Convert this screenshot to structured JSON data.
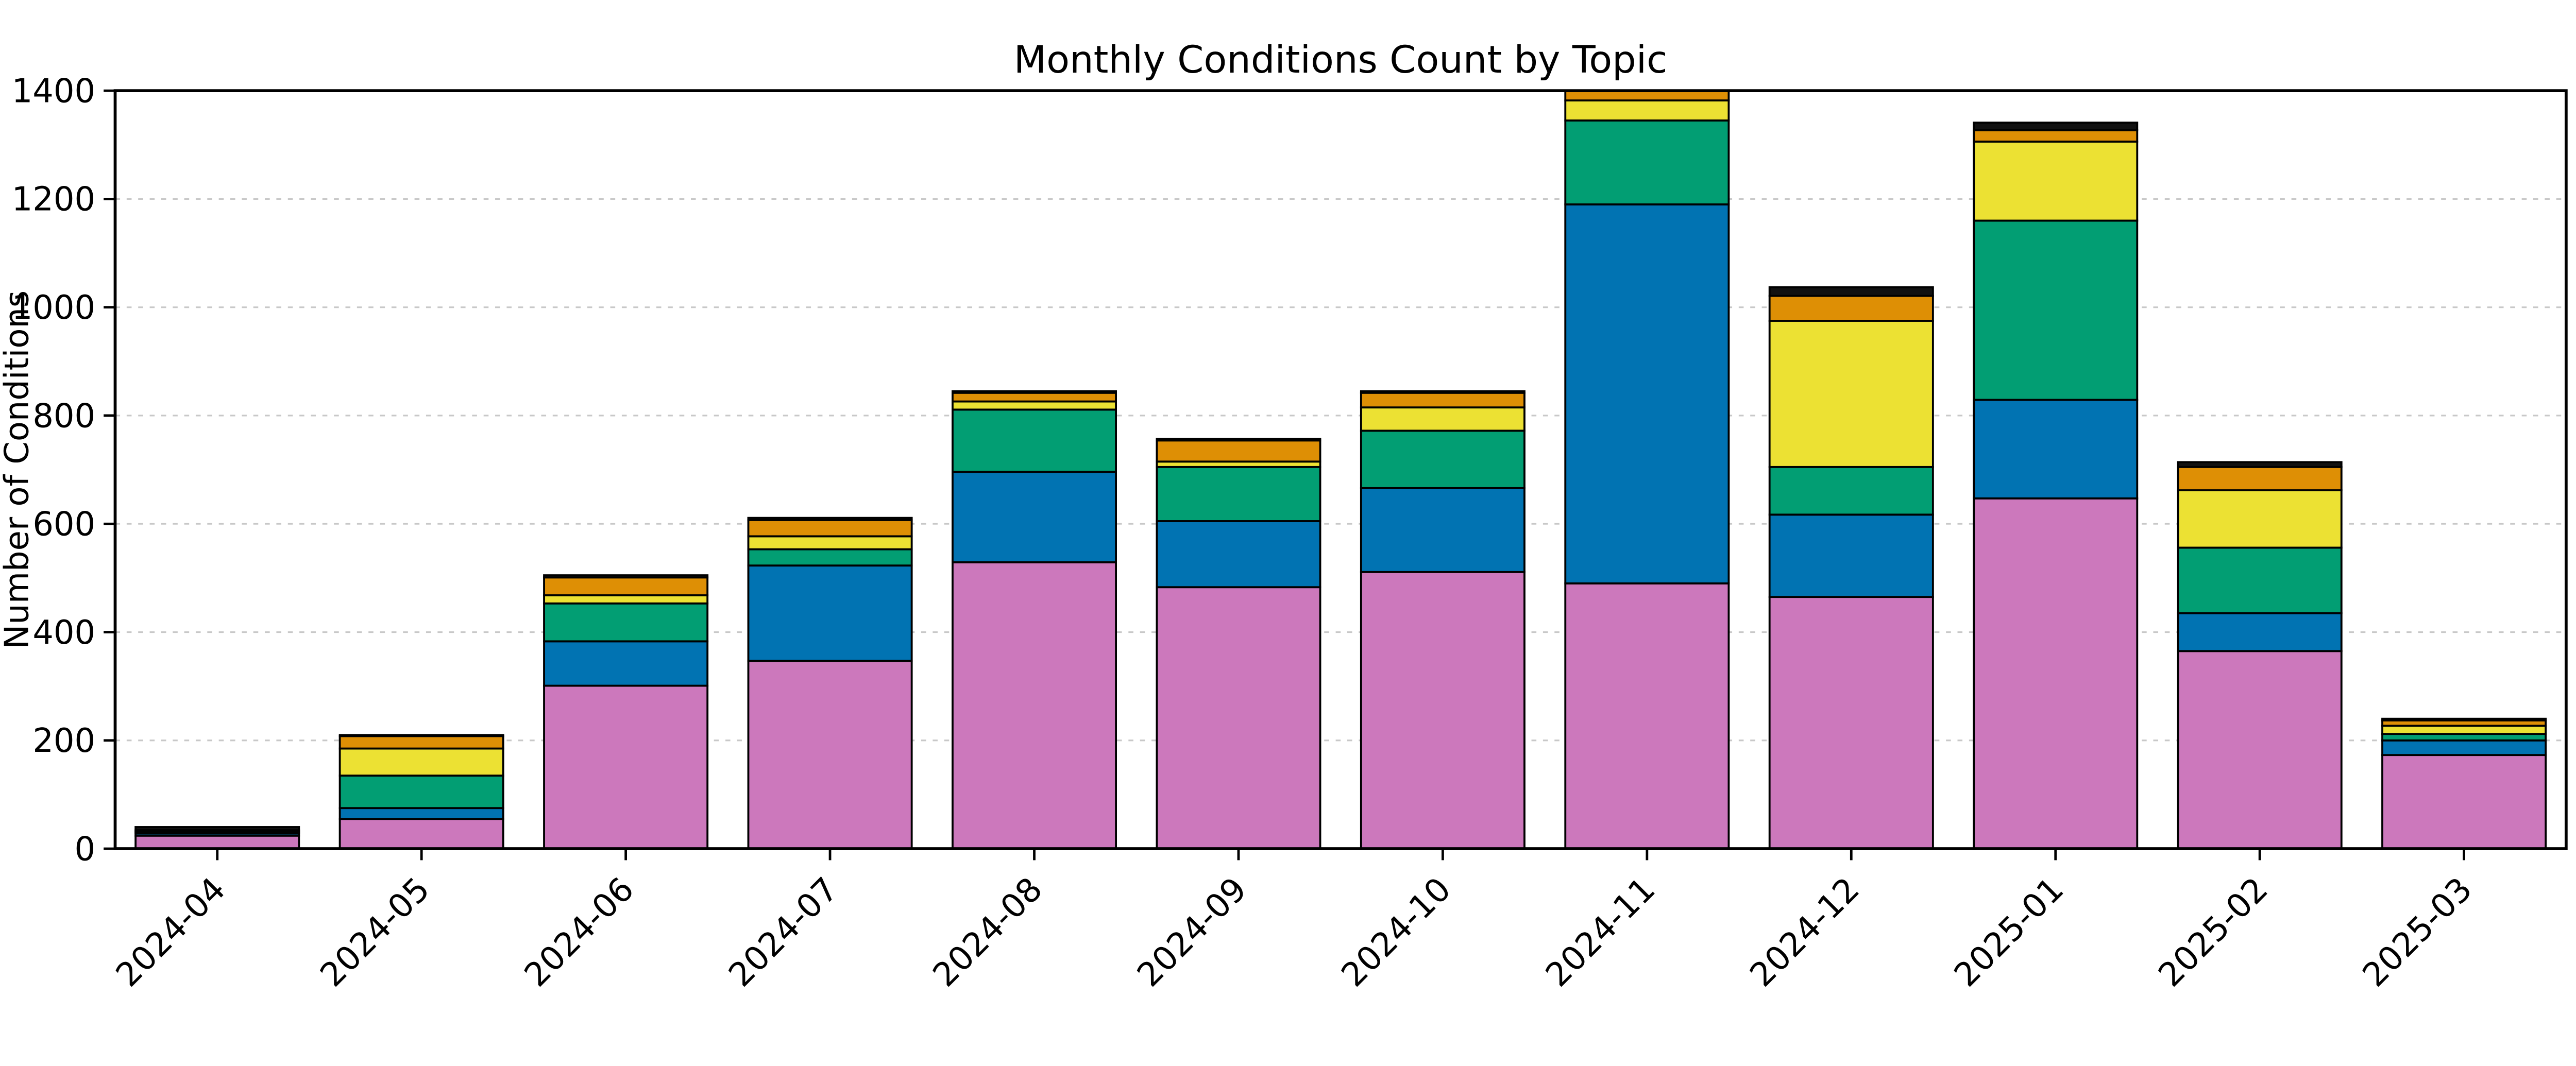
{
  "chart_data": {
    "type": "bar",
    "stacked": true,
    "title": "Monthly Conditions Count by Topic",
    "xlabel": "",
    "ylabel": "Number of Conditions",
    "legend": "none",
    "grid": "horizontal-dashed",
    "ylim": [
      0,
      1400
    ],
    "yticks": [
      0,
      200,
      400,
      600,
      800,
      1000,
      1200,
      1400
    ],
    "categories": [
      "2024-04",
      "2024-05",
      "2024-06",
      "2024-07",
      "2024-08",
      "2024-09",
      "2024-10",
      "2024-11",
      "2024-12",
      "2025-01",
      "2025-02",
      "2025-03"
    ],
    "series": [
      {
        "name": "pink",
        "color": "#CC78BC",
        "values": [
          24,
          55,
          301,
          347,
          529,
          483,
          511,
          490,
          465,
          647,
          365,
          173
        ]
      },
      {
        "name": "blue",
        "color": "#0173B2",
        "values": [
          4,
          20,
          82,
          176,
          167,
          122,
          155,
          700,
          152,
          182,
          70,
          27
        ]
      },
      {
        "name": "green",
        "color": "#029E73",
        "values": [
          2,
          60,
          70,
          30,
          115,
          100,
          106,
          155,
          88,
          331,
          121,
          12
        ]
      },
      {
        "name": "yellow",
        "color": "#ECE133",
        "values": [
          2,
          50,
          15,
          24,
          15,
          10,
          43,
          37,
          270,
          146,
          106,
          15
        ]
      },
      {
        "name": "orange",
        "color": "#DE8F05",
        "values": [
          2,
          23,
          33,
          30,
          16,
          39,
          27,
          38,
          46,
          21,
          43,
          10
        ]
      },
      {
        "name": "black",
        "color": "#111111",
        "values": [
          6,
          2,
          4,
          4,
          3,
          3,
          3,
          0,
          16,
          14,
          9,
          3
        ]
      }
    ],
    "bar_edge_color": "#000000",
    "grid_color": "#c8c8c8",
    "axis_color": "#000000",
    "text_color": "#000000",
    "background_color": "#ffffff"
  }
}
